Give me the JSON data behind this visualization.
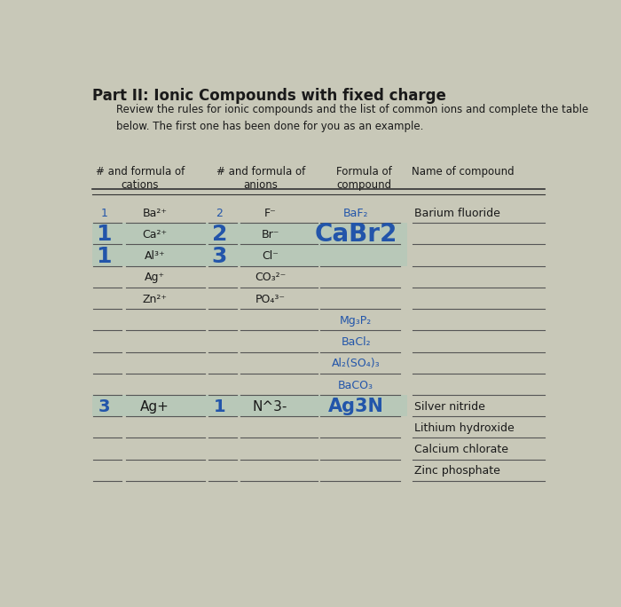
{
  "title": "Part II: Ionic Compounds with fixed charge",
  "subtitle": "Review the rules for ionic compounds and the list of common ions and complete the table\nbelow. The first one has been done for you as an example.",
  "bg_color": "#c8c8b8",
  "highlight_bg": "#b8c8b8",
  "col_headers": [
    "# and formula of\ncations",
    "# and formula of\nanions",
    "Formula of\ncompound",
    "Name of compound"
  ],
  "rows": [
    {
      "num1": "1",
      "cat": "Ba²⁺",
      "num2": "2",
      "an": "F⁻",
      "formula": "BaF₂",
      "name": "Barium fluoride",
      "num1_size": 9,
      "num2_size": 9,
      "cat_size": 9,
      "an_size": 9,
      "formula_size": 9,
      "name_size": 9,
      "highlight": false
    },
    {
      "num1": "1",
      "cat": "Ca²⁺",
      "num2": "2",
      "an": "Br⁻",
      "formula": "CaBr2",
      "name": "",
      "num1_size": 18,
      "num2_size": 18,
      "cat_size": 9,
      "an_size": 9,
      "formula_size": 20,
      "name_size": 9,
      "highlight": true
    },
    {
      "num1": "1",
      "cat": "Al³⁺",
      "num2": "3",
      "an": "Cl⁻",
      "formula": "",
      "name": "",
      "num1_size": 18,
      "num2_size": 18,
      "cat_size": 9,
      "an_size": 9,
      "formula_size": 9,
      "name_size": 9,
      "highlight": true
    },
    {
      "num1": "",
      "cat": "Ag⁺",
      "num2": "",
      "an": "CO₃²⁻",
      "formula": "",
      "name": "",
      "num1_size": 9,
      "num2_size": 9,
      "cat_size": 9,
      "an_size": 9,
      "formula_size": 9,
      "name_size": 9,
      "highlight": false
    },
    {
      "num1": "",
      "cat": "Zn²⁺",
      "num2": "",
      "an": "PO₄³⁻",
      "formula": "",
      "name": "",
      "num1_size": 9,
      "num2_size": 9,
      "cat_size": 9,
      "an_size": 9,
      "formula_size": 9,
      "name_size": 9,
      "highlight": false
    },
    {
      "num1": "",
      "cat": "",
      "num2": "",
      "an": "",
      "formula": "Mg₃P₂",
      "name": "",
      "num1_size": 9,
      "num2_size": 9,
      "cat_size": 9,
      "an_size": 9,
      "formula_size": 9,
      "name_size": 9,
      "highlight": false
    },
    {
      "num1": "",
      "cat": "",
      "num2": "",
      "an": "",
      "formula": "BaCl₂",
      "name": "",
      "num1_size": 9,
      "num2_size": 9,
      "cat_size": 9,
      "an_size": 9,
      "formula_size": 9,
      "name_size": 9,
      "highlight": false
    },
    {
      "num1": "",
      "cat": "",
      "num2": "",
      "an": "",
      "formula": "Al₂(SO₄)₃",
      "name": "",
      "num1_size": 9,
      "num2_size": 9,
      "cat_size": 9,
      "an_size": 9,
      "formula_size": 9,
      "name_size": 9,
      "highlight": false
    },
    {
      "num1": "",
      "cat": "",
      "num2": "",
      "an": "",
      "formula": "BaCO₃",
      "name": "",
      "num1_size": 9,
      "num2_size": 9,
      "cat_size": 9,
      "an_size": 9,
      "formula_size": 9,
      "name_size": 9,
      "highlight": false
    },
    {
      "num1": "3",
      "cat": "Ag+",
      "num2": "1",
      "an": "N^3-",
      "formula": "Ag3N",
      "name": "Silver nitride",
      "num1_size": 14,
      "num2_size": 14,
      "cat_size": 11,
      "an_size": 11,
      "formula_size": 15,
      "name_size": 9,
      "highlight": true
    },
    {
      "num1": "",
      "cat": "",
      "num2": "",
      "an": "",
      "formula": "",
      "name": "Lithium hydroxide",
      "num1_size": 9,
      "num2_size": 9,
      "cat_size": 9,
      "an_size": 9,
      "formula_size": 9,
      "name_size": 9,
      "highlight": false
    },
    {
      "num1": "",
      "cat": "",
      "num2": "",
      "an": "",
      "formula": "",
      "name": "Calcium chlorate",
      "num1_size": 9,
      "num2_size": 9,
      "cat_size": 9,
      "an_size": 9,
      "formula_size": 9,
      "name_size": 9,
      "highlight": false
    },
    {
      "num1": "",
      "cat": "",
      "num2": "",
      "an": "",
      "formula": "",
      "name": "Zinc phosphate",
      "num1_size": 9,
      "num2_size": 9,
      "cat_size": 9,
      "an_size": 9,
      "formula_size": 9,
      "name_size": 9,
      "highlight": false
    }
  ],
  "text_color": "#1a1a1a",
  "blue_color": "#2255aa",
  "line_color": "#555555",
  "header_line_color": "#333333"
}
